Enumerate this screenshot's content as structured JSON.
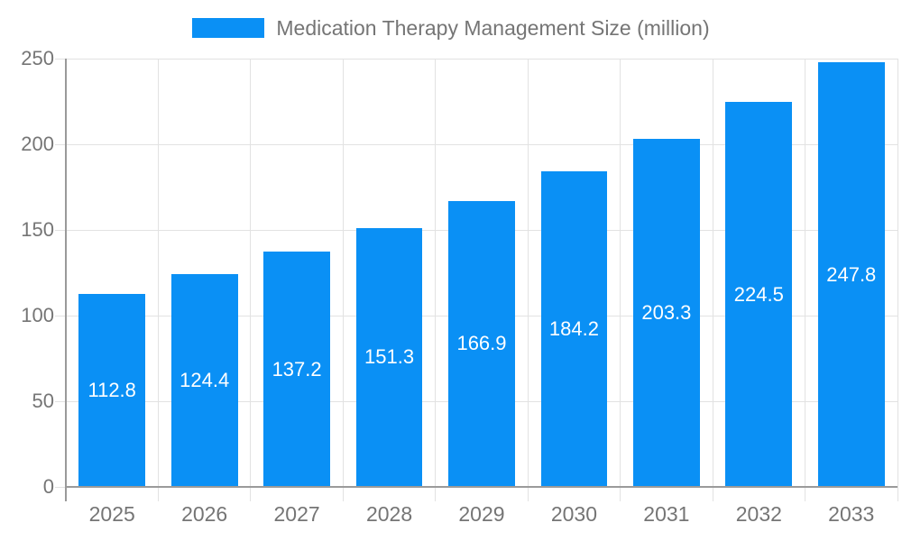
{
  "legend": {
    "label": "Medication Therapy Management Size (million)"
  },
  "colors": {
    "bar": "#0a90f5",
    "axis": "#9a9a9a",
    "grid": "#e2e2e2",
    "text": "#757575",
    "value_text": "#ffffff",
    "background": "#ffffff"
  },
  "chart_data": {
    "type": "bar",
    "title": "Medication Therapy Management Size (million)",
    "series_name": "Medication Therapy Management Size (million)",
    "categories": [
      "2025",
      "2026",
      "2027",
      "2028",
      "2029",
      "2030",
      "2031",
      "2032",
      "2033"
    ],
    "values": [
      112.8,
      124.4,
      137.2,
      151.3,
      166.9,
      184.2,
      203.3,
      224.5,
      247.8
    ],
    "xlabel": "",
    "ylabel": "",
    "ylim": [
      0,
      250
    ],
    "yticks": [
      0,
      50,
      100,
      150,
      200,
      250
    ],
    "grid": true,
    "legend_position": "top",
    "value_labels": "inside-center"
  }
}
